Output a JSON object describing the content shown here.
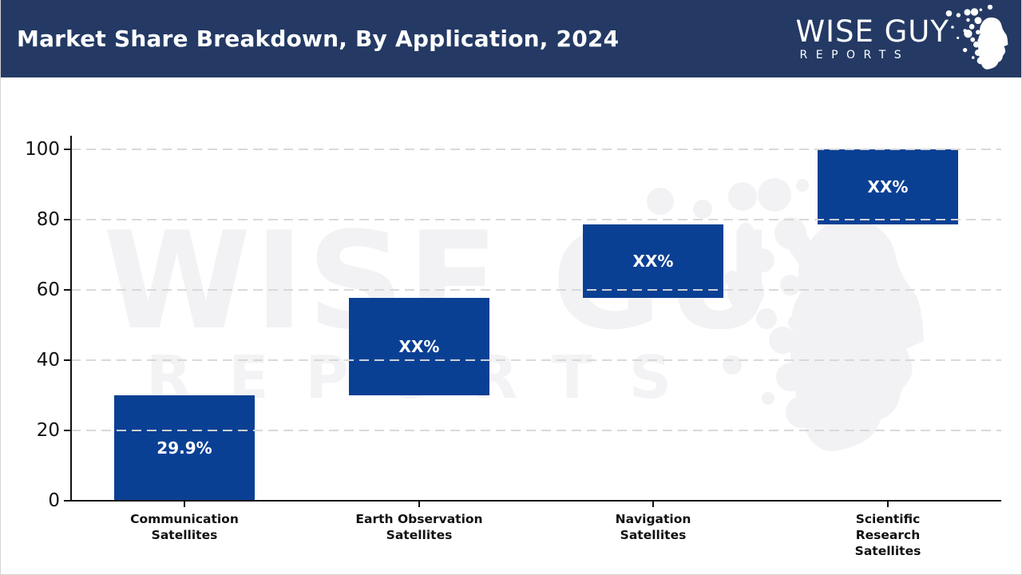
{
  "header": {
    "title": "Market Share Breakdown, By Application, 2024",
    "logo": {
      "name": "WISE GUY",
      "subtitle": "REPORTS"
    }
  },
  "watermark": {
    "wordmark": "WISE GUY",
    "subtitle": "REPORTS"
  },
  "chart_data": {
    "type": "bar",
    "subtype": "waterfall",
    "title": "Market Share Breakdown, By Application, 2024",
    "categories": [
      "Communication Satellites",
      "Earth Observation Satellites",
      "Navigation Satellites",
      "Scientific Research Satellites"
    ],
    "category_lines": [
      [
        "Communication",
        "Satellites"
      ],
      [
        "Earth Observation",
        "Satellites"
      ],
      [
        "Navigation",
        "Satellites"
      ],
      [
        "Scientific",
        "Research",
        "Satellites"
      ]
    ],
    "segments": [
      {
        "start": 0,
        "end": 29.9,
        "label": "29.9%"
      },
      {
        "start": 29.9,
        "end": 57.7,
        "label": "XX%"
      },
      {
        "start": 57.7,
        "end": 78.6,
        "label": "XX%"
      },
      {
        "start": 78.6,
        "end": 100,
        "label": "XX%"
      }
    ],
    "yticks": [
      0,
      20,
      40,
      60,
      80,
      100
    ],
    "ylim": [
      0,
      104
    ],
    "xlabel": "",
    "ylabel": "",
    "grid": {
      "axis": "y",
      "style": "dashed",
      "color": "#d7d7d7"
    },
    "legend": "none",
    "colors": {
      "bar": "#0a4094",
      "bar_label": "#ffffff",
      "axis": "#111111",
      "header_bg": "#243a64",
      "watermark": "#f2f2f4"
    }
  }
}
